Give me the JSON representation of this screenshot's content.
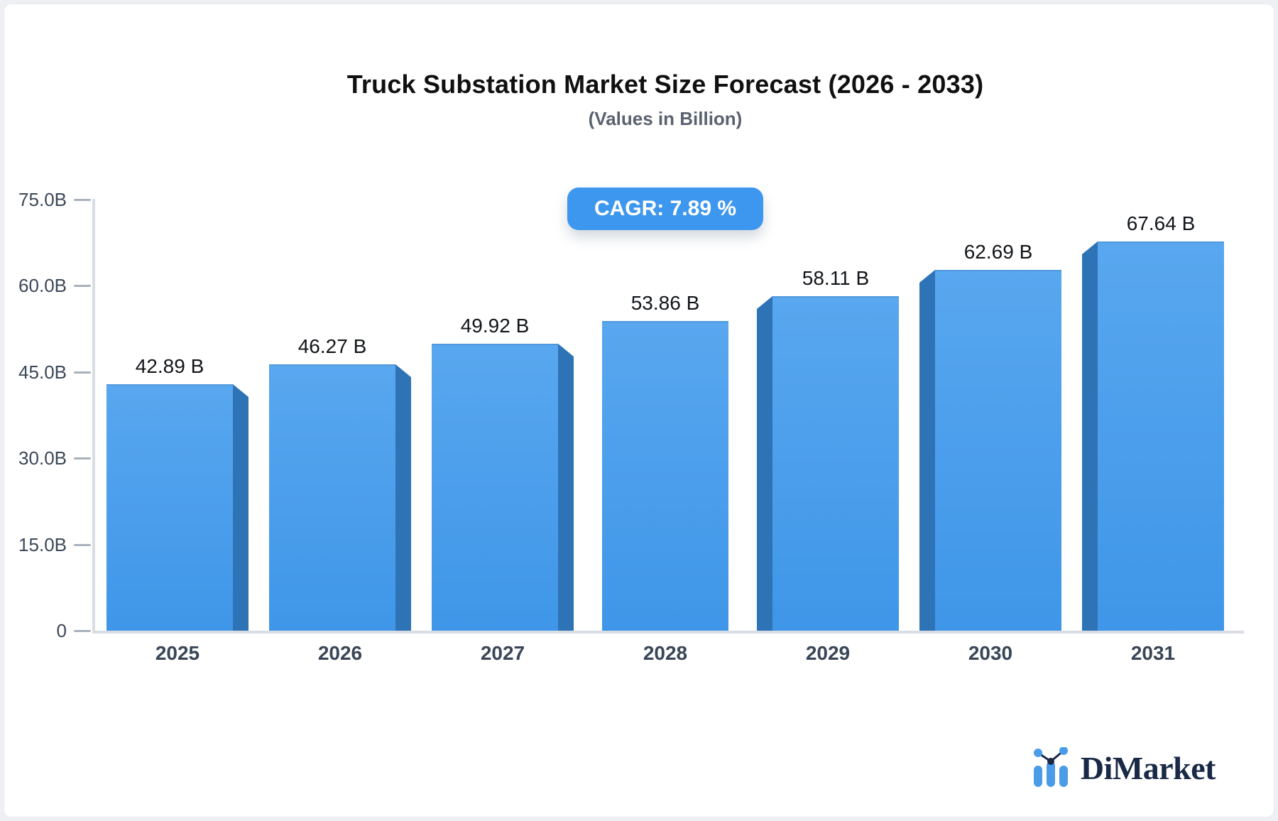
{
  "chart_data": {
    "type": "bar",
    "title": "Truck Substation Market Size Forecast (2026 - 2033)",
    "subtitle": "(Values in Billion)",
    "cagr_label": "CAGR: 7.89 %",
    "categories": [
      "2025",
      "2026",
      "2027",
      "2028",
      "2029",
      "2030",
      "2031"
    ],
    "values": [
      42.89,
      46.27,
      49.92,
      53.86,
      58.11,
      62.69,
      67.64
    ],
    "bar_labels": [
      "42.89 B",
      "46.27 B",
      "49.92 B",
      "53.86 B",
      "58.11 B",
      "62.69 B",
      "67.64 B"
    ],
    "xlabel": "",
    "ylabel": "",
    "ylim": [
      0,
      75
    ],
    "yticks": {
      "labels": [
        "75.0B",
        "60.0B",
        "45.0B",
        "30.0B",
        "15.0B",
        "0"
      ],
      "values": [
        75,
        60,
        45,
        30,
        15,
        0
      ]
    },
    "grid": "off",
    "legend": "none",
    "bar_style": "3d-perspective-center"
  },
  "logo": {
    "name": "DiMarket",
    "icon": "bar-chart-sparkline-icon"
  },
  "colors": {
    "bar_face_top": "#58a7ef",
    "bar_face_bottom": "#3f96e8",
    "bar_side": "#2e73b6",
    "badge_bg": "#3e97ef",
    "axis_line": "#d8dce3",
    "tick_dash": "#a9b1bb",
    "tick_text": "#3b4859",
    "year_text": "#394657",
    "value_text": "#121519",
    "title_text": "#101010",
    "subtitle_text": "#5a6270",
    "logo_navy": "#1a2946",
    "logo_blue": "#4a9ce8",
    "card_bg": "#ffffff"
  }
}
